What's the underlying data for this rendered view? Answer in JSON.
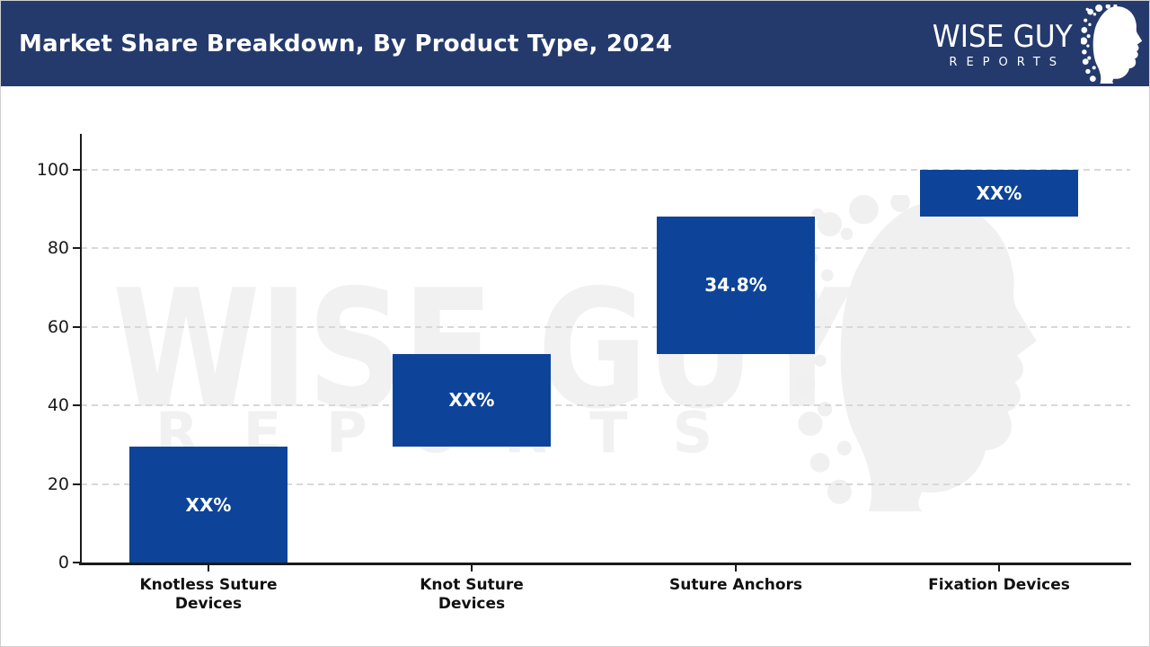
{
  "header": {
    "title": "Market Share Breakdown, By Product Type, 2024",
    "logo": {
      "line1": "WISE GUY",
      "line2": "REPORTS"
    }
  },
  "watermark": {
    "line1": "WISE GUY",
    "line2": "REPORTS",
    "head_icon": "wise-guy-head"
  },
  "colors": {
    "header_bg": "#253a6c",
    "bar": "#0d4499",
    "bar_label": "#ffffff",
    "axis": "#1a1a1a",
    "grid": "#d8d8d8",
    "watermark": "#f1f1f1"
  },
  "chart_data": {
    "type": "bar",
    "subtype": "waterfall",
    "title": "Market Share Breakdown, By Product Type, 2024",
    "categories": [
      "Knotless Suture Devices",
      "Knot Suture Devices",
      "Suture Anchors",
      "Fixation Devices"
    ],
    "segments": [
      {
        "category": "Knotless Suture Devices",
        "start": 0,
        "end": 29.5,
        "label": "XX%"
      },
      {
        "category": "Knot Suture Devices",
        "start": 29.5,
        "end": 53.2,
        "label": "XX%"
      },
      {
        "category": "Suture Anchors",
        "start": 53.2,
        "end": 88.0,
        "label": "34.8%"
      },
      {
        "category": "Fixation Devices",
        "start": 88.0,
        "end": 100.0,
        "label": "XX%"
      }
    ],
    "values_shown": [
      "XX%",
      "XX%",
      "34.8%",
      "XX%"
    ],
    "xlabel": "",
    "ylabel": "",
    "ylim": [
      0,
      100
    ],
    "yticks": [
      0,
      20,
      40,
      60,
      80,
      100
    ],
    "grid": "horizontal-dashed",
    "legend": "none"
  }
}
